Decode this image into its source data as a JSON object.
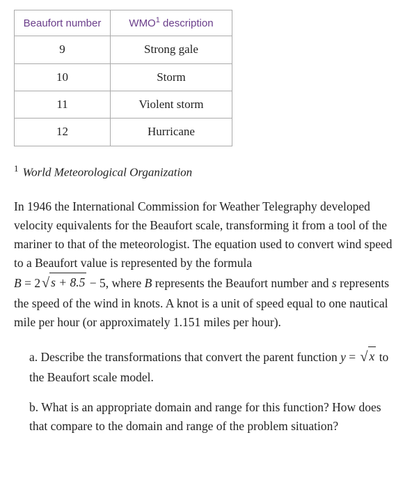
{
  "table": {
    "headers": {
      "col1": "Beaufort number",
      "col2_pre": "WMO",
      "col2_sup": "1",
      "col2_post": " description"
    },
    "rows": [
      {
        "num": "9",
        "desc": "Strong gale"
      },
      {
        "num": "10",
        "desc": "Storm"
      },
      {
        "num": "11",
        "desc": "Violent storm"
      },
      {
        "num": "12",
        "desc": "Hurricane"
      }
    ]
  },
  "footnote": {
    "num": "1",
    "text": "World Meteorological Organization"
  },
  "paragraph": {
    "p1": "In 1946 the International Commission for Weather Telegraphy developed velocity equivalents for the Beaufort scale, transforming it from a tool of the mariner to that of the meteorologist. The equation used to convert wind speed to a Beaufort value is represented by the formula",
    "eq_lhs": "B",
    "eq_eq": " = 2",
    "eq_inrad": "s + 8.5",
    "eq_after": " − 5",
    "p2a": ", where ",
    "p2_b": "B",
    "p2b": " represents the Beaufort number and ",
    "p2_s": "s",
    "p2c": " represents the speed of the wind in knots. A knot is a unit of speed equal to one nautical mile per hour (or approximately 1.151 miles per hour)."
  },
  "qa": {
    "label": "a. ",
    "t1": "Describe the transformations that convert the parent function ",
    "eq_lhs": "y",
    "eq_eq": " = ",
    "eq_rad": "x",
    "t2": " to the Beaufort scale model."
  },
  "qb": {
    "label": "b. ",
    "t": "What is an appropriate domain and range for this function? How does that compare to the domain and range of the problem situation?"
  }
}
